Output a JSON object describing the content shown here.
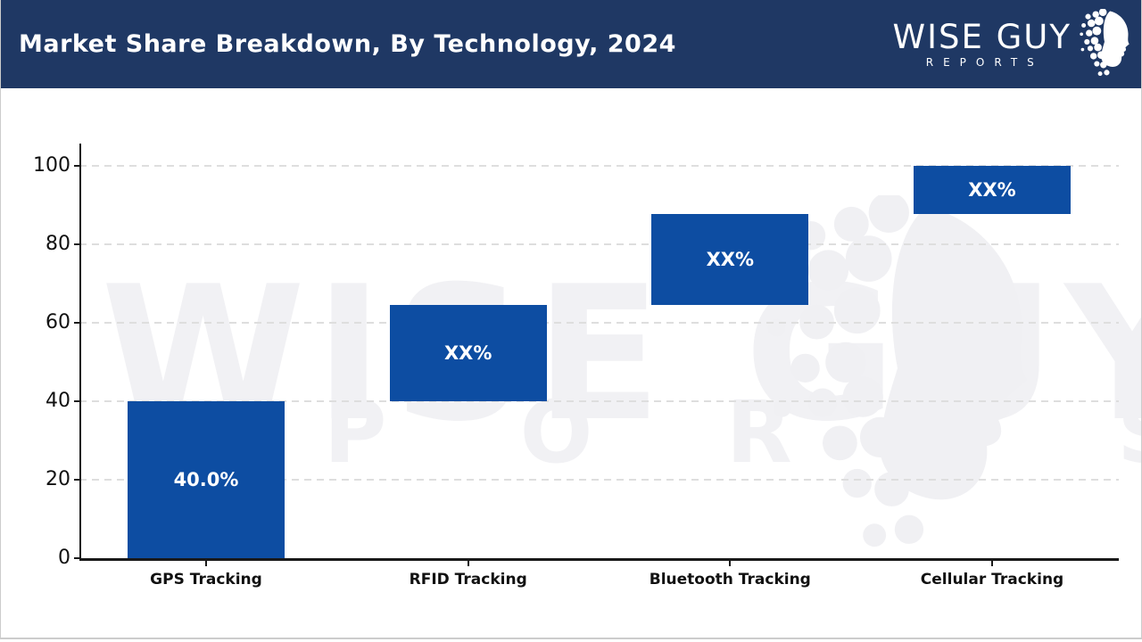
{
  "header": {
    "title": "Market Share Breakdown, By Technology, 2024",
    "bg_color": "#1f3864",
    "logo": {
      "line1": "WISE GUY",
      "line2": "REPORTS"
    }
  },
  "watermark": {
    "line1": "WISE GUY",
    "line2": "P O R T S"
  },
  "chart_data": {
    "type": "bar",
    "subtype": "waterfall",
    "title": "Market Share Breakdown, By Technology, 2024",
    "categories": [
      "GPS Tracking",
      "RFID Tracking",
      "Bluetooth Tracking",
      "Cellular Tracking"
    ],
    "series": [
      {
        "name": "Market share",
        "segments": [
          {
            "category": "GPS Tracking",
            "label": "40.0%",
            "start": 0,
            "end": 40.0
          },
          {
            "category": "RFID Tracking",
            "label": "XX%",
            "start": 40.0,
            "end": 64.5
          },
          {
            "category": "Bluetooth Tracking",
            "label": "XX%",
            "start": 64.5,
            "end": 87.7
          },
          {
            "category": "Cellular Tracking",
            "label": "XX%",
            "start": 87.7,
            "end": 100.0
          }
        ]
      }
    ],
    "yticks": [
      0,
      20,
      40,
      60,
      80,
      100
    ],
    "ylim": [
      0,
      105
    ],
    "xlabel": "",
    "ylabel": "",
    "grid": true,
    "grid_style": "dashed",
    "bar_color": "#0d4da2",
    "bar_label_color": "#ffffff",
    "legend": "none"
  }
}
